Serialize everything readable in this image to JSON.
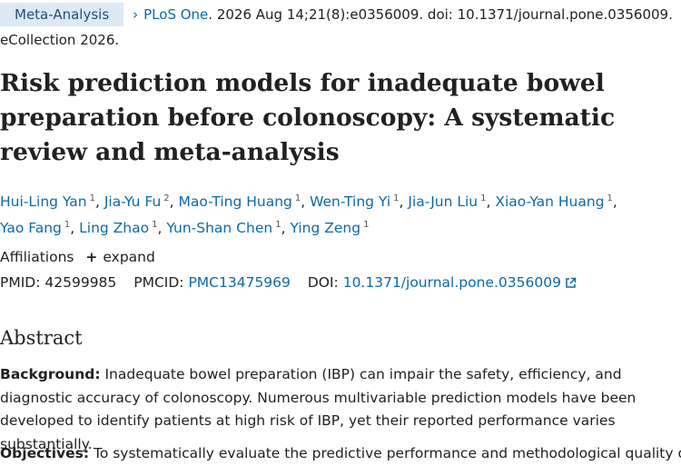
{
  "header": {
    "badge": "Meta-Analysis",
    "journal": "PLoS One",
    "citation": ". 2026 Aug 14;21(8):e0356009. doi: 10.1371/journal.pone.0356009.",
    "ecollection": "eCollection 2026."
  },
  "title": "Risk prediction models for inadequate bowel preparation before colonoscopy: A systematic review and meta-analysis",
  "authors": [
    {
      "name": "Hui-Ling Yan",
      "sup": "1"
    },
    {
      "name": "Jia-Yu Fu",
      "sup": "2"
    },
    {
      "name": "Mao-Ting Huang",
      "sup": "1"
    },
    {
      "name": "Wen-Ting Yi",
      "sup": "1"
    },
    {
      "name": "Jia-Jun Liu",
      "sup": "1"
    },
    {
      "name": "Xiao-Yan Huang",
      "sup": "1"
    },
    {
      "name": "Yao Fang",
      "sup": "1"
    },
    {
      "name": "Ling Zhao",
      "sup": "1"
    },
    {
      "name": "Yun-Shan Chen",
      "sup": "1"
    },
    {
      "name": "Ying Zeng",
      "sup": "1"
    }
  ],
  "affiliations": {
    "label": "Affiliations",
    "expand": "expand"
  },
  "ids": {
    "pmid_label": "PMID:",
    "pmid": "42599985",
    "pmcid_label": "PMCID:",
    "pmcid": "PMC13475969",
    "doi_label": "DOI:",
    "doi": "10.1371/journal.pone.0356009"
  },
  "abstract": {
    "heading": "Abstract",
    "background_label": "Background:",
    "background_text": " Inadequate bowel preparation (IBP) can impair the safety, efficiency, and diagnostic accuracy of colonoscopy. Numerous multivariable prediction models have been developed to identify patients at high risk of IBP, yet their reported performance varies substantially.",
    "objectives_label": "Objectives:",
    "objectives_text": " To systematically evaluate the predictive performance and methodological quality of"
  },
  "colors": {
    "link": "#0b69a8",
    "badge_bg": "#dde9f4",
    "text": "#212121"
  }
}
